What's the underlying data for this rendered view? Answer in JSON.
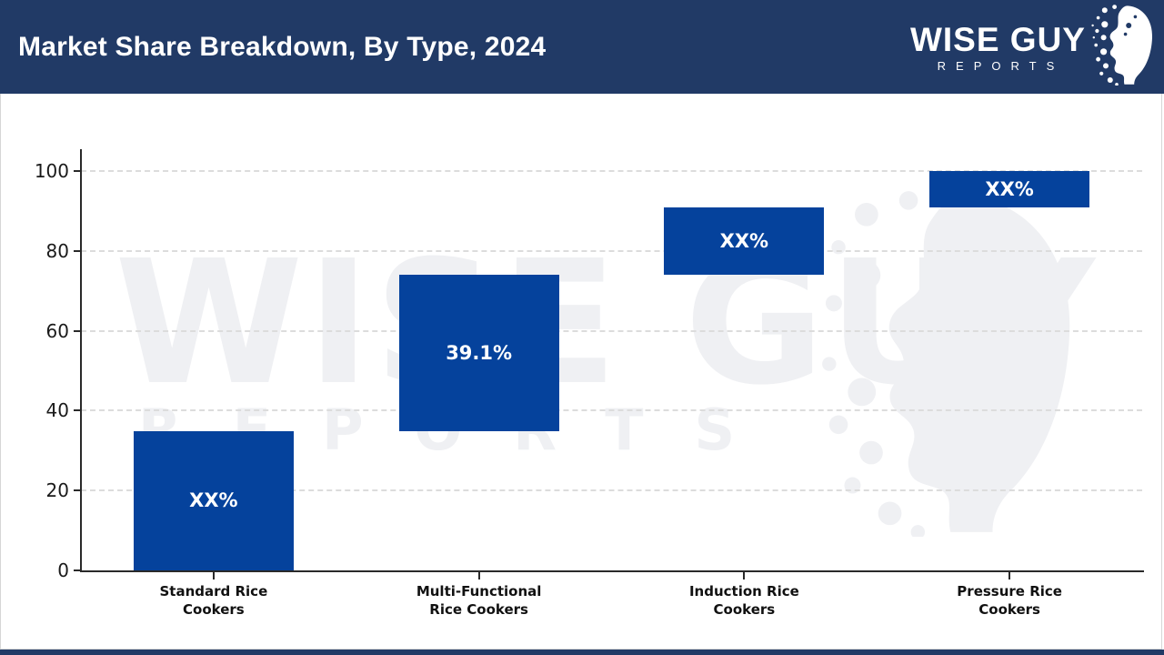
{
  "colors": {
    "header_bg": "#213a66",
    "footer_bg": "#213a66",
    "bar_blue": "#05429c",
    "watermark_gray": "#eff0f3",
    "axis_dark": "#2a2a2a",
    "grid_gray": "#dcdcdc"
  },
  "header": {
    "title": "Market Share Breakdown, By Type, 2024",
    "logo_line1": "WISE GUY",
    "logo_line2": "REPORTS"
  },
  "watermark": {
    "line1": "WISE GUY",
    "line2": "REPORTS"
  },
  "chart_data": {
    "type": "bar",
    "subtype": "waterfall-segments",
    "title": "Market Share Breakdown, By Type, 2024",
    "categories": [
      [
        "Standard Rice",
        "Cookers"
      ],
      [
        "Multi-Functional",
        "Rice Cookers"
      ],
      [
        "Induction Rice",
        "Cookers"
      ],
      [
        "Pressure Rice",
        "Cookers"
      ]
    ],
    "segments": [
      {
        "label": "XX%",
        "start": 0,
        "end": 34.9,
        "value": 34.9
      },
      {
        "label": "39.1%",
        "start": 34.9,
        "end": 74.0,
        "value": 39.1
      },
      {
        "label": "XX%",
        "start": 74.0,
        "end": 91.0,
        "value": 17.0
      },
      {
        "label": "XX%",
        "start": 91.0,
        "end": 100.0,
        "value": 9.0
      }
    ],
    "yticks": [
      0,
      20,
      40,
      60,
      80,
      100
    ],
    "ylim": [
      0,
      100
    ],
    "xlabel": "",
    "ylabel": "",
    "grid": "dashed-horizontal",
    "legend": "none",
    "bar_color": "#05429c",
    "bar_label_color": "#ffffff"
  }
}
